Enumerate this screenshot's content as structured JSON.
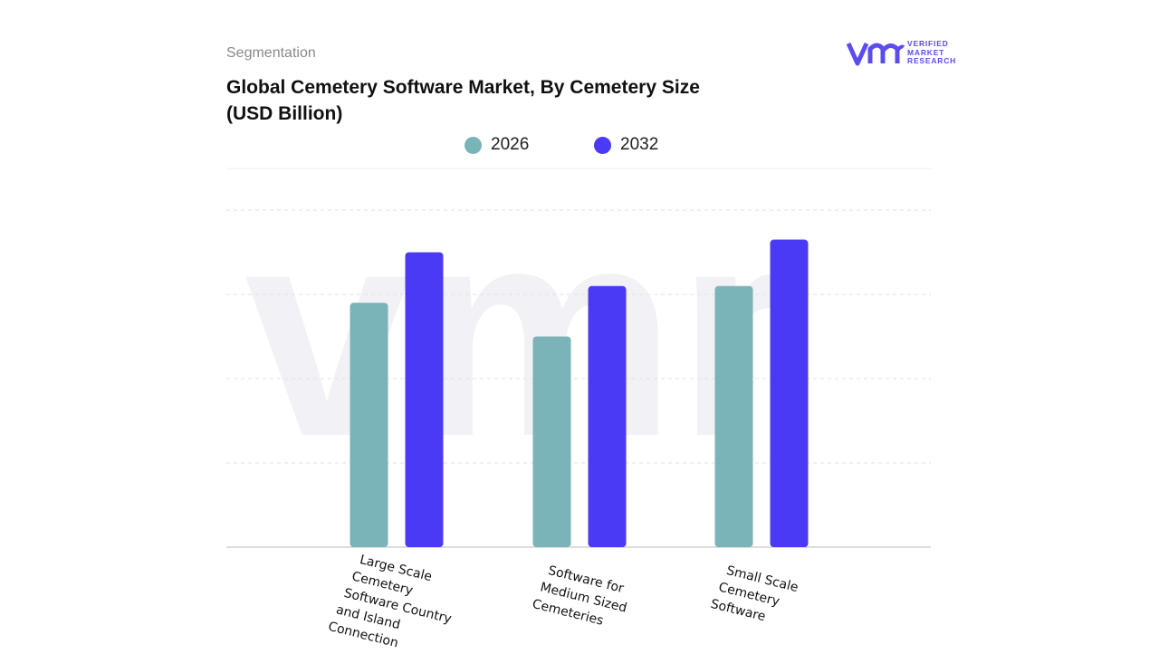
{
  "header": {
    "segment_label": "Segmentation",
    "title": "Global Cemetery Software Market, By Cemetery Size (USD Billion)"
  },
  "logo": {
    "lines": [
      "VERIFIED",
      "MARKET",
      "RESEARCH"
    ],
    "brand_color": "#5b4cf0"
  },
  "chart_data": {
    "type": "bar",
    "title": "Global Cemetery Software Market, By Cemetery Size (USD Billion)",
    "xlabel": "",
    "ylabel": "",
    "ylim": [
      0,
      4
    ],
    "grid": true,
    "legend_position": "top-center",
    "categories": [
      "Large Scale Cemetery Software Country and Island Connection",
      "Software for Medium Sized Cemeteries",
      "Small Scale Cemetery Software"
    ],
    "category_label_lines": [
      [
        "Large Scale",
        "Cemetery",
        "Software Country",
        "and Island",
        "Connection"
      ],
      [
        "Software for",
        "Medium Sized",
        "Cemeteries"
      ],
      [
        "Small Scale",
        "Cemetery",
        "Software"
      ]
    ],
    "series": [
      {
        "name": "2026",
        "color": "#7ab3b8",
        "values": [
          2.9,
          2.5,
          3.1
        ]
      },
      {
        "name": "2032",
        "color": "#4b3af5",
        "values": [
          3.5,
          3.1,
          3.65
        ]
      }
    ]
  }
}
